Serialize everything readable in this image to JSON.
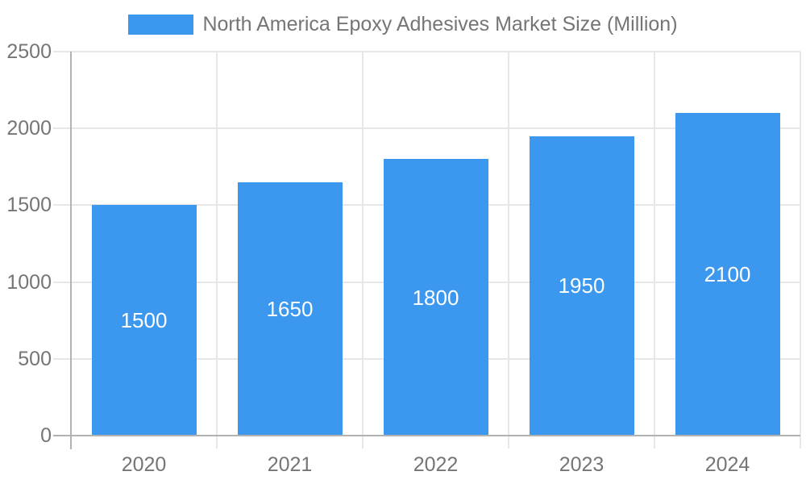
{
  "legend": {
    "label": "North America Epoxy Adhesives Market Size (Million)"
  },
  "chart_data": {
    "type": "bar",
    "title": "North America Epoxy Adhesives Market Size (Million)",
    "series_name": "North America Epoxy Adhesives Market Size (Million)",
    "categories": [
      "2020",
      "2021",
      "2022",
      "2023",
      "2024"
    ],
    "values": [
      1500,
      1650,
      1800,
      1950,
      2100
    ],
    "xlabel": "",
    "ylabel": "",
    "ylim": [
      0,
      2500
    ],
    "yticks": [
      0,
      500,
      1000,
      1500,
      2000,
      2500
    ],
    "grid": true,
    "legend_position": "top",
    "bar_color": "#3b98ee",
    "value_label_color": "#ffffff",
    "text_color": "#757575",
    "gridline_color": "#e7e7e7",
    "axis_color": "#b2b2b2"
  }
}
